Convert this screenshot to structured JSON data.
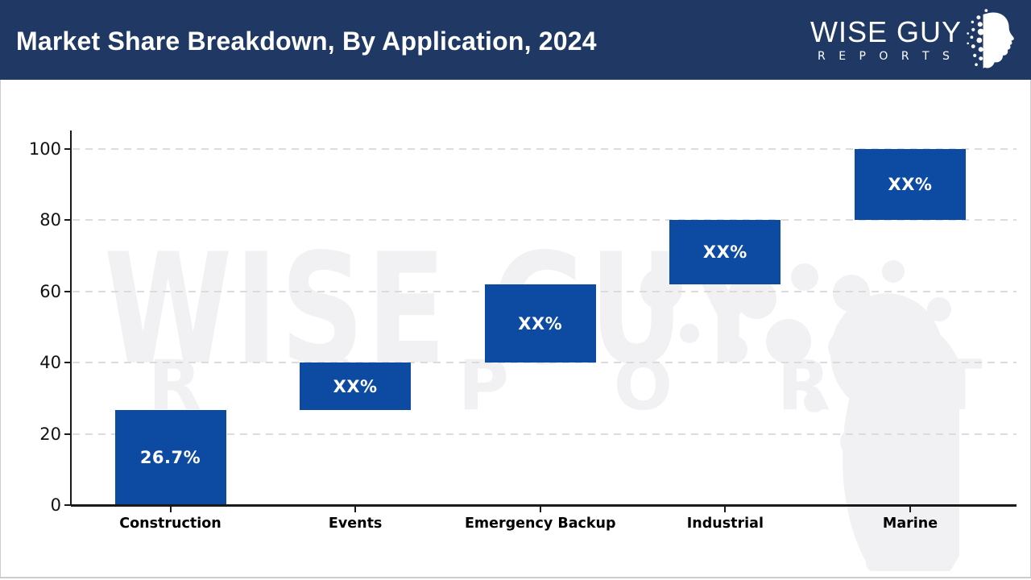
{
  "header": {
    "title": "Market Share Breakdown, By Application, 2024",
    "bg_color": "#1F3864",
    "logo": {
      "line1": "WISE GUY",
      "line2": "R E P O R T S"
    }
  },
  "watermark": {
    "line1": "WISE GUY",
    "line2": "R E P O R T S"
  },
  "chart_data": {
    "type": "waterfall",
    "title": "Market Share Breakdown, By Application, 2024",
    "categories": [
      "Construction",
      "Events",
      "Emergency Backup",
      "Industrial",
      "Marine"
    ],
    "segments": [
      {
        "category": "Construction",
        "start": 0,
        "end": 26.7,
        "value_label": "26.7%"
      },
      {
        "category": "Events",
        "start": 26.7,
        "end": 40,
        "value_label": "XX%"
      },
      {
        "category": "Emergency Backup",
        "start": 40,
        "end": 62,
        "value_label": "XX%"
      },
      {
        "category": "Industrial",
        "start": 62,
        "end": 80,
        "value_label": "XX%"
      },
      {
        "category": "Marine",
        "start": 80,
        "end": 100,
        "value_label": "XX%"
      }
    ],
    "y_ticks": [
      0,
      20,
      40,
      60,
      80,
      100
    ],
    "ylim": [
      0,
      100
    ],
    "xlabel": "",
    "ylabel": "",
    "grid": "horizontal-dashed",
    "legend": "none",
    "bar_color": "#0D4AA1",
    "bar_label_color": "#FFFFFF",
    "axis_color": "#1A1A1A",
    "gridline_color": "#DCDCDC"
  }
}
